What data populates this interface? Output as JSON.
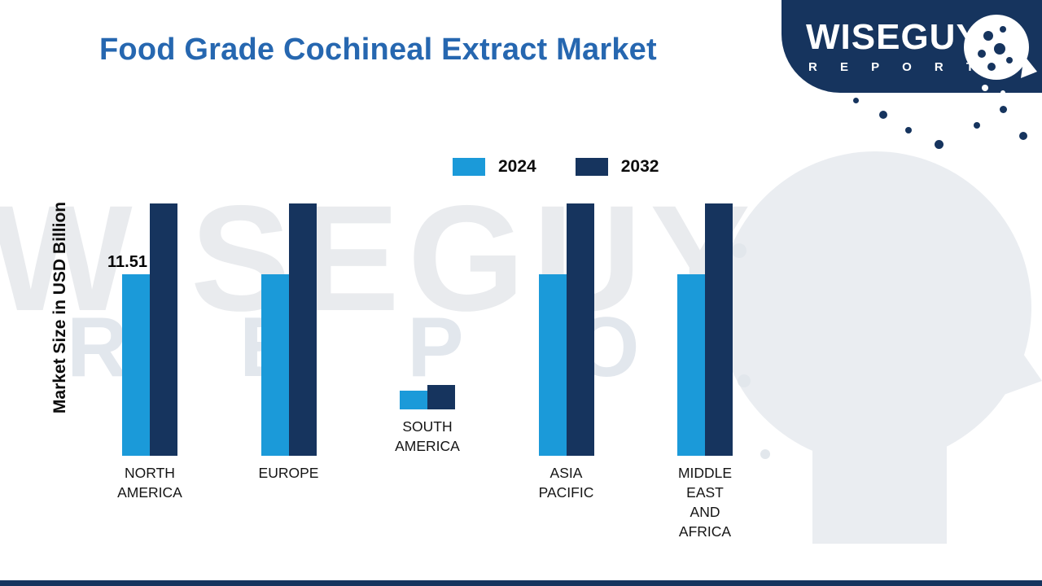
{
  "header": {
    "title": "Food Grade Cochineal Extract Market"
  },
  "logo": {
    "brand": "WISEGUY",
    "sub": "R E P O R T S"
  },
  "watermark": {
    "brand": "WISEGUY",
    "sub": "R E P O R T S"
  },
  "colors": {
    "title": "#2667b0",
    "series_2024": "#1b9ad9",
    "series_2032": "#16345e",
    "footer_bar": "#16345e",
    "logo_background": "#16345e"
  },
  "chart_data": {
    "type": "bar",
    "title": "Food Grade Cochineal Extract Market",
    "xlabel": "",
    "ylabel": "Market Size in USD Billion",
    "ylim": [
      0,
      16
    ],
    "grid": false,
    "legend_position": "top-center",
    "categories": [
      "NORTH AMERICA",
      "EUROPE",
      "SOUTH AMERICA",
      "ASIA PACIFIC",
      "MIDDLE EAST AND AFRICA"
    ],
    "series": [
      {
        "name": "2024",
        "color": "#1b9ad9",
        "values": [
          11.51,
          11.5,
          1.2,
          11.5,
          11.5
        ]
      },
      {
        "name": "2032",
        "color": "#16345e",
        "values": [
          16,
          16,
          1.55,
          16,
          16
        ]
      }
    ],
    "value_labels": [
      {
        "series": "2024",
        "category_index": 0,
        "text": "11.51"
      }
    ]
  }
}
